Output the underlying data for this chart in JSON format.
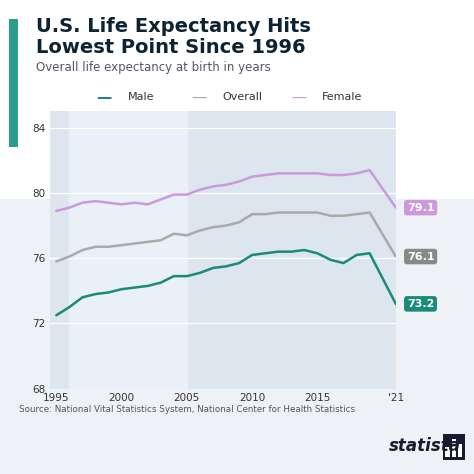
{
  "title_line1": "U.S. Life Expectancy Hits",
  "title_line2": "Lowest Point Since 1996",
  "subtitle": "Overall life expectancy at birth in years",
  "source": "Source: National Vital Statistics System, National Center for Health Statistics",
  "years": [
    1995,
    1996,
    1997,
    1998,
    1999,
    2000,
    2001,
    2002,
    2003,
    2004,
    2005,
    2006,
    2007,
    2008,
    2009,
    2010,
    2011,
    2012,
    2013,
    2014,
    2015,
    2016,
    2017,
    2018,
    2019,
    2021
  ],
  "male": [
    72.5,
    73.0,
    73.6,
    73.8,
    73.9,
    74.1,
    74.2,
    74.3,
    74.5,
    74.9,
    74.9,
    75.1,
    75.4,
    75.5,
    75.7,
    76.2,
    76.3,
    76.4,
    76.4,
    76.5,
    76.3,
    75.9,
    75.7,
    76.2,
    76.3,
    73.2
  ],
  "overall": [
    75.8,
    76.1,
    76.5,
    76.7,
    76.7,
    76.8,
    76.9,
    77.0,
    77.1,
    77.5,
    77.4,
    77.7,
    77.9,
    78.0,
    78.2,
    78.7,
    78.7,
    78.8,
    78.8,
    78.8,
    78.8,
    78.6,
    78.6,
    78.7,
    78.8,
    76.1
  ],
  "female": [
    78.9,
    79.1,
    79.4,
    79.5,
    79.4,
    79.3,
    79.4,
    79.3,
    79.6,
    79.9,
    79.9,
    80.2,
    80.4,
    80.5,
    80.7,
    81.0,
    81.1,
    81.2,
    81.2,
    81.2,
    81.2,
    81.1,
    81.1,
    81.2,
    81.4,
    79.1
  ],
  "male_color": "#1a8a7a",
  "overall_color": "#aaaaaa",
  "female_color": "#cc99dd",
  "accent_color": "#2a9d8f",
  "title_color": "#0d2233",
  "subtitle_color": "#555566",
  "shaded_region_start": 1996,
  "shaded_region_end": 2005,
  "plot_bg_color": "#dde6ee",
  "shaded_color": "#eaf0f7",
  "page_bg_color": "#eef2f7",
  "top_bg_color": "#ffffff",
  "ylim_low": 68,
  "ylim_high": 85,
  "yticks": [
    68,
    72,
    76,
    80,
    84
  ],
  "xtick_positions": [
    1995,
    2000,
    2005,
    2010,
    2015
  ],
  "xtick_labels": [
    "1995",
    "2000",
    "2005",
    "2010",
    "2015"
  ],
  "label_female": "79.1",
  "label_overall": "76.1",
  "label_male": "73.2",
  "female_box_color": "#cc99dd",
  "overall_box_color": "#888888",
  "male_box_color": "#1a8a7a",
  "source_color": "#555566",
  "statista_color": "#1a1a2e"
}
